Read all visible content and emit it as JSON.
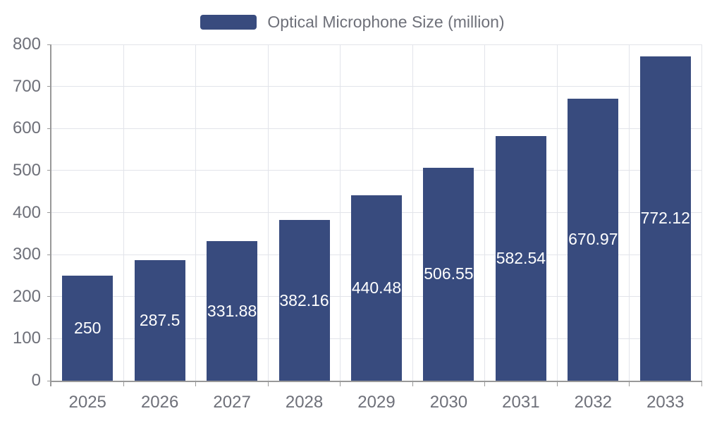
{
  "legend": {
    "label": "Optical Microphone Size (million)"
  },
  "colors": {
    "bar": "#384b7e",
    "bar_label": "#ffffff",
    "axis_line": "#999999",
    "tick": "#999999",
    "grid": "#e2e4ea",
    "text": "#6e7079",
    "background": "#ffffff"
  },
  "chart_data": {
    "type": "bar",
    "title": "Optical Microphone Size (million)",
    "categories": [
      "2025",
      "2026",
      "2027",
      "2028",
      "2029",
      "2030",
      "2031",
      "2032",
      "2033"
    ],
    "values": [
      250,
      287.5,
      331.88,
      382.16,
      440.48,
      506.55,
      582.54,
      670.97,
      772.12
    ],
    "series_name": "Optical Microphone Size (million)",
    "xlabel": "",
    "ylabel": "",
    "ylim": [
      0,
      800
    ],
    "yticks": [
      0,
      100,
      200,
      300,
      400,
      500,
      600,
      700,
      800
    ],
    "grid": true,
    "legend_position": "top-center",
    "value_labels_position": "inside-center"
  }
}
